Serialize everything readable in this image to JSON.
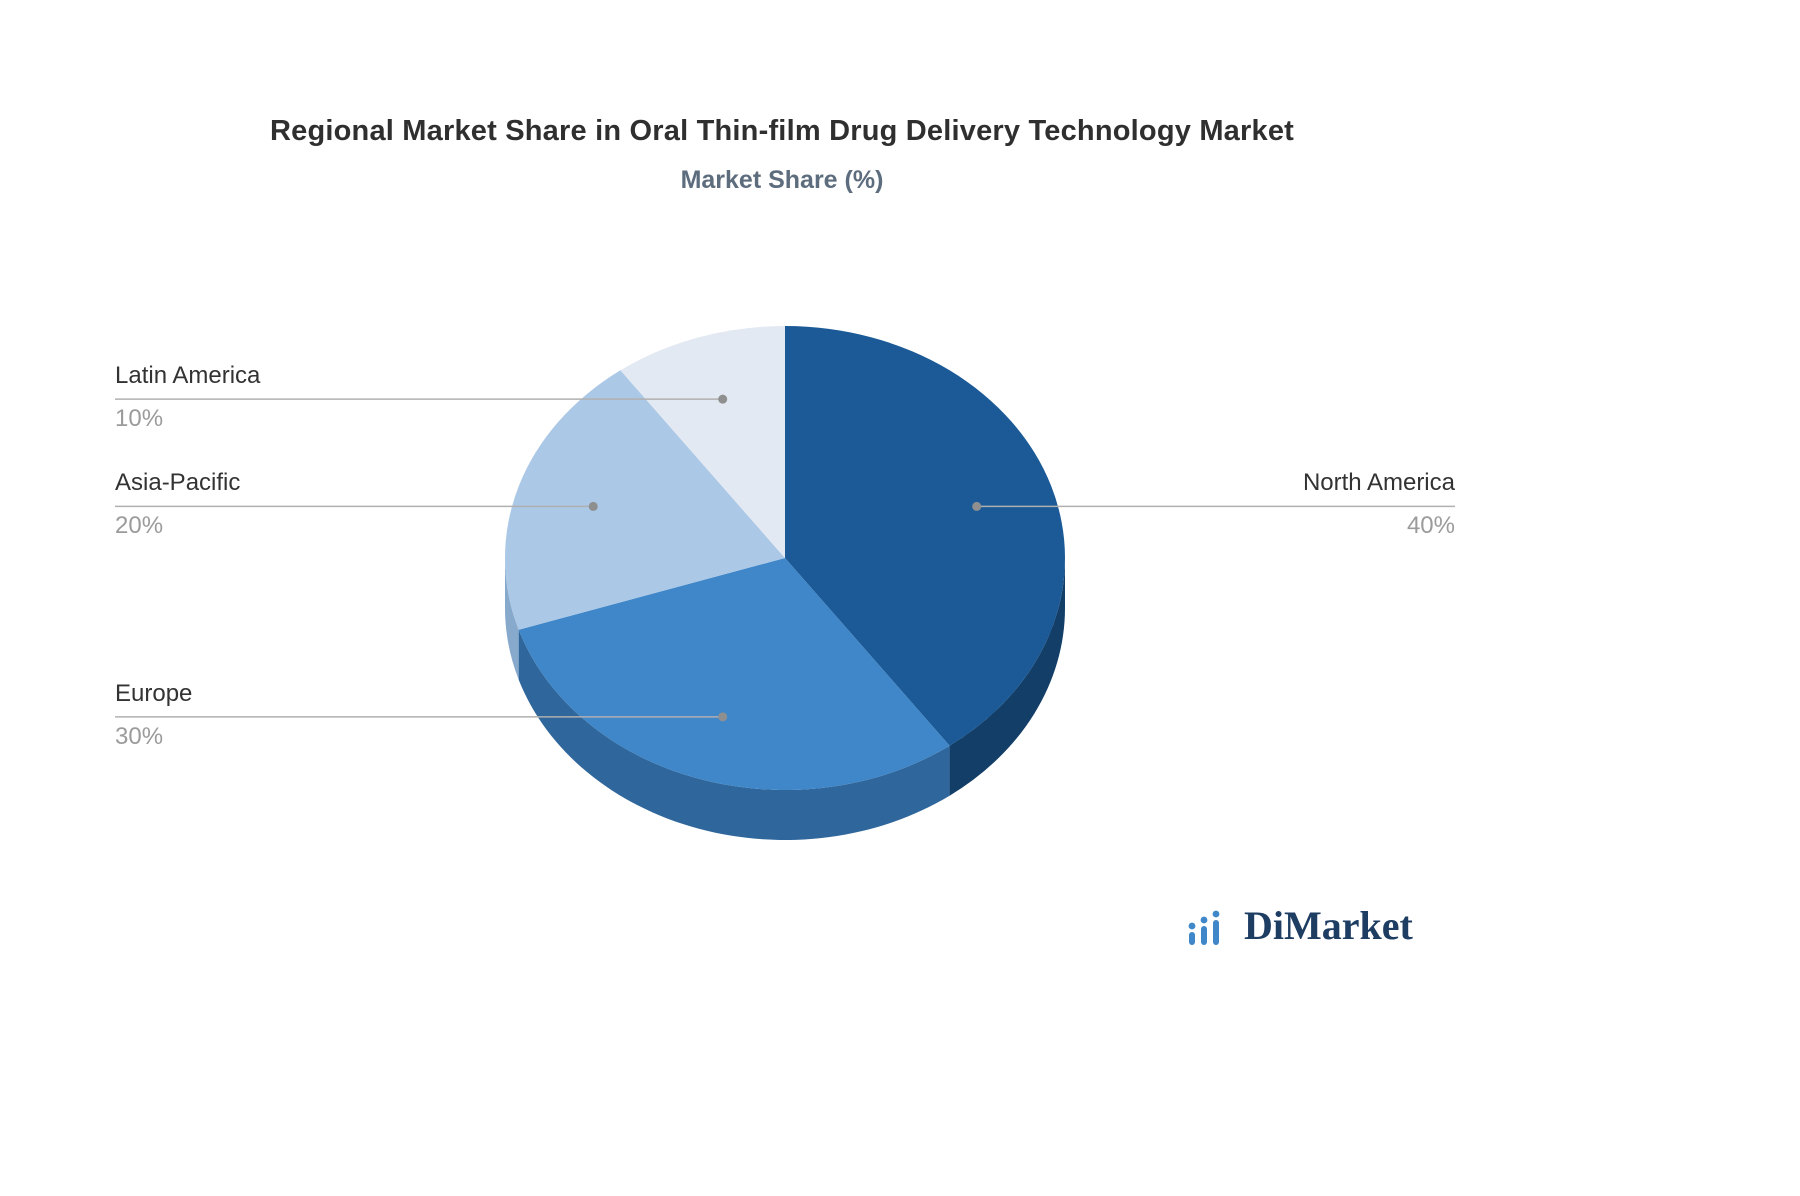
{
  "title": "Regional Market Share in Oral Thin-film Drug Delivery Technology Market",
  "subtitle": "Market Share (%)",
  "logo": {
    "text": "DiMarket",
    "text_color": "#1e3d62",
    "icon": "bar-chart-icon",
    "icon_color": "#3f87c9"
  },
  "chart_data": {
    "type": "pie",
    "style": "3d",
    "title": "Regional Market Share in Oral Thin-film Drug Delivery Technology Market",
    "subtitle": "Market Share (%)",
    "unit": "%",
    "categories": [
      "North America",
      "Europe",
      "Asia-Pacific",
      "Latin America"
    ],
    "values": [
      40,
      30,
      20,
      10
    ],
    "value_labels": [
      "40%",
      "30%",
      "20%",
      "10%"
    ],
    "colors": [
      "#1b5a96",
      "#3f87c9",
      "#abc8e6",
      "#e3e9f2"
    ],
    "side_colors": [
      "#123e68",
      "#2f669b",
      "#86a9cc",
      "#b9c6d8"
    ],
    "start_angle_deg": 0,
    "direction": "clockwise",
    "legend_position": "none",
    "labels_mode": "leader-lines",
    "leader_line_color": "#b0b0b0",
    "leader_dot_color": "#8f8f8f",
    "label_color": "#333333",
    "value_color": "#9b9b9b"
  }
}
